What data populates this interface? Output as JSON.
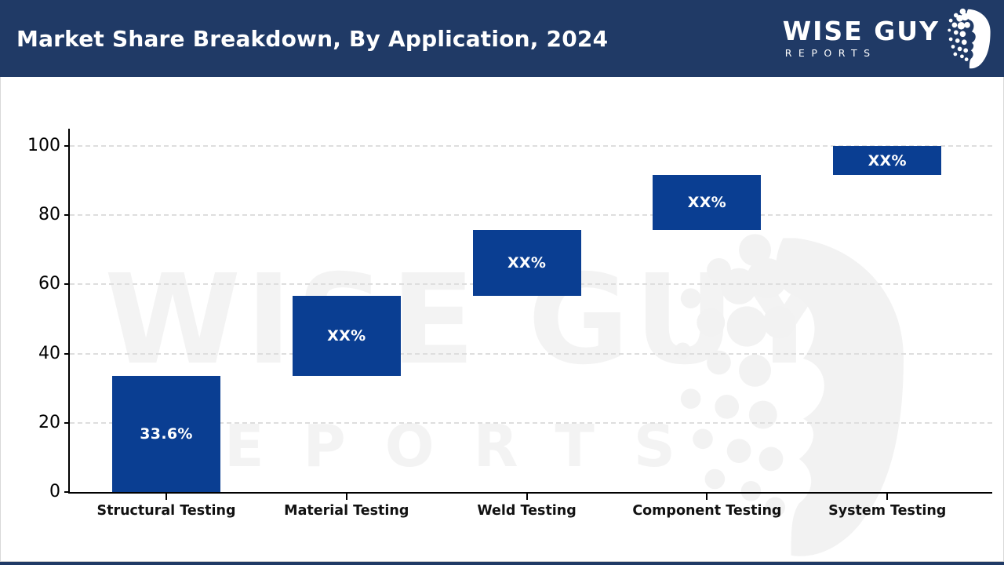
{
  "header": {
    "title": "Market Share Breakdown, By Application, 2024",
    "logo": {
      "name": "WISE GUY",
      "subtitle": "REPORTS"
    }
  },
  "watermark": {
    "line1": "WISE GUY",
    "line2": "REPORTS"
  },
  "colors": {
    "header_bg": "#203a66",
    "bar": "#0a3e92",
    "bar_label": "#ffffff",
    "grid": "#dedede",
    "axis": "#000000",
    "watermark": "#f3f3f3"
  },
  "chart_data": {
    "type": "bar",
    "subtype": "floating-waterfall",
    "title": "Market Share Breakdown, By Application, 2024",
    "categories": [
      "Structural Testing",
      "Material Testing",
      "Weld Testing",
      "Component Testing",
      "System Testing"
    ],
    "segments": [
      {
        "category": "Structural Testing",
        "start": 0,
        "end": 33.6,
        "label": "33.6%"
      },
      {
        "category": "Material Testing",
        "start": 33.6,
        "end": 56.7,
        "label": "XX%"
      },
      {
        "category": "Weld Testing",
        "start": 56.7,
        "end": 75.7,
        "label": "XX%"
      },
      {
        "category": "Component Testing",
        "start": 75.7,
        "end": 91.6,
        "label": "XX%"
      },
      {
        "category": "System Testing",
        "start": 91.6,
        "end": 100,
        "label": "XX%"
      }
    ],
    "xlabel": "",
    "ylabel": "",
    "yticks": [
      0,
      20,
      40,
      60,
      80,
      100
    ],
    "ylim": [
      0,
      105
    ],
    "grid": "horizontal-dashed",
    "legend": "none",
    "bar_label_note": "first bar shows real value, others masked as XX%"
  }
}
